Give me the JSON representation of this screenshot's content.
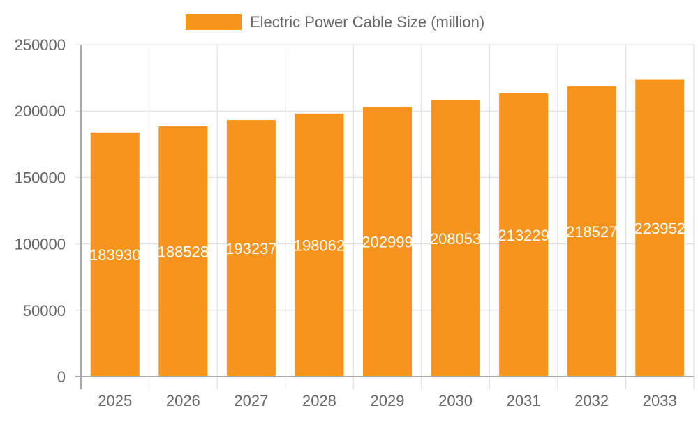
{
  "chart_data": {
    "type": "bar",
    "title": "",
    "xlabel": "",
    "ylabel": "",
    "legend": {
      "position": "top",
      "entries": [
        "Electric Power Cable Size (million)"
      ]
    },
    "categories": [
      "2025",
      "2026",
      "2027",
      "2028",
      "2029",
      "2030",
      "2031",
      "2032",
      "2033"
    ],
    "series": [
      {
        "name": "Electric Power Cable Size (million)",
        "values": [
          183930,
          188528,
          193237,
          198062,
          202999,
          208053,
          213229,
          218527,
          223952
        ],
        "color": "#f7941e"
      }
    ],
    "ylim": [
      0,
      250000
    ],
    "yticks": [
      "0",
      "50000",
      "100000",
      "150000",
      "200000",
      "250000"
    ],
    "grid": true,
    "data_labels": true,
    "data_label_color": "#ffffff"
  }
}
